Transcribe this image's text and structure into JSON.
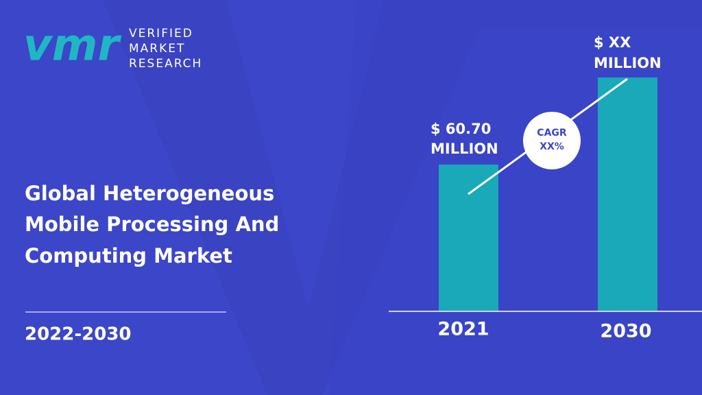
{
  "logo": {
    "mark": "vmr",
    "lines": [
      "VERIFIED",
      "MARKET",
      "RESEARCH"
    ]
  },
  "title": [
    "Global Heterogeneous",
    "Mobile Processing And",
    "Computing Market"
  ],
  "period": "2022-2030",
  "bars": [
    {
      "year": "2021",
      "label": [
        "$ 60.70",
        "MILLION"
      ]
    },
    {
      "year": "2030",
      "label": [
        "$ XX",
        "MILLION"
      ]
    }
  ],
  "cagr": [
    "CAGR",
    "XX%"
  ]
}
